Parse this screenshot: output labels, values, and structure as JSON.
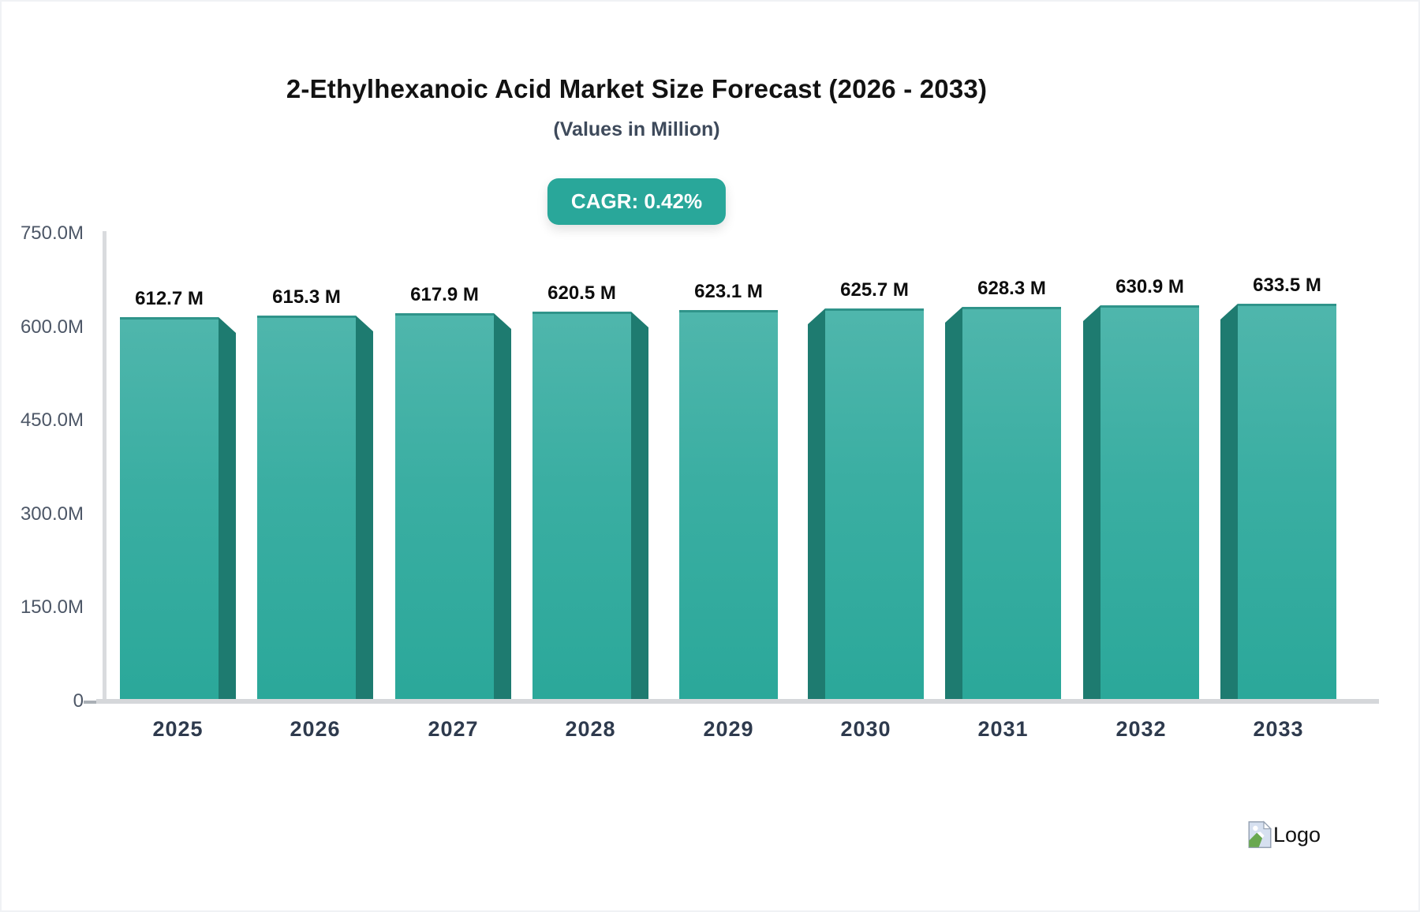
{
  "header": {
    "title": "2-Ethylhexanoic Acid Market Size Forecast (2026 - 2033)",
    "subtitle": "(Values in Million)"
  },
  "badge": {
    "label": "CAGR: 0.42%"
  },
  "colors": {
    "accent": "#29a79a",
    "bar_face_top": "#4fb6ac",
    "bar_face_bottom": "#2ba89a",
    "bar_top_edge": "#2f948a",
    "bar_side": "#1e7b70",
    "axis": "#d6d8db",
    "value_label": "#0d0d0d",
    "year_label": "#2e3a4d",
    "tick_label": "#4d5767"
  },
  "chart_data": {
    "type": "bar",
    "title": "2-Ethylhexanoic Acid Market Size Forecast (2026 - 2033)",
    "subtitle": "(Values in Million)",
    "annotation": "CAGR: 0.42%",
    "categories": [
      "2025",
      "2026",
      "2027",
      "2028",
      "2029",
      "2030",
      "2031",
      "2032",
      "2033"
    ],
    "values": [
      612.7,
      615.3,
      617.9,
      620.5,
      623.1,
      625.7,
      628.3,
      630.9,
      633.5
    ],
    "value_labels": [
      "612.7 M",
      "615.3 M",
      "617.9 M",
      "620.5 M",
      "623.1 M",
      "625.7 M",
      "628.3 M",
      "630.9 M",
      "633.5 M"
    ],
    "unit": "Million",
    "ylim": [
      0,
      750
    ],
    "yticks": [
      {
        "value": 750,
        "label": "750.0M"
      },
      {
        "value": 600,
        "label": "600.0M"
      },
      {
        "value": 450,
        "label": "450.0M"
      },
      {
        "value": 300,
        "label": "300.0M"
      },
      {
        "value": 150,
        "label": "150.0M"
      },
      {
        "value": 0,
        "label": "0"
      }
    ],
    "grid": false,
    "legend": false
  },
  "footer": {
    "logo_text": "Logo"
  }
}
